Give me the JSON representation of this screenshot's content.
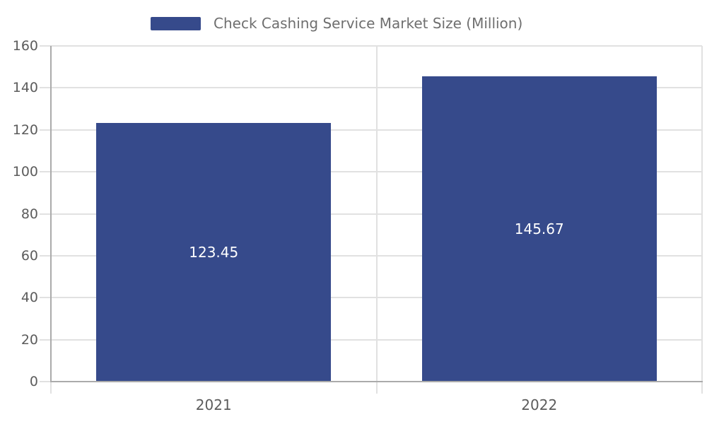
{
  "legend": {
    "label": "Check Cashing Service Market Size (Million)"
  },
  "chart_data": {
    "type": "bar",
    "title": "Check Cashing Service Market Size (Million)",
    "categories": [
      "2021",
      "2022"
    ],
    "values": [
      123.45,
      145.67
    ],
    "value_labels": [
      "123.45",
      "145.67"
    ],
    "series": [
      {
        "name": "Check Cashing Service Market Size (Million)",
        "values": [
          123.45,
          145.67
        ]
      }
    ],
    "xlabel": "",
    "ylabel": "",
    "ylim": [
      0,
      160
    ],
    "ytick_step": 20,
    "yticks": [
      0,
      20,
      40,
      60,
      80,
      100,
      120,
      140,
      160
    ],
    "grid": true,
    "legend_position": "top",
    "colors": {
      "bar": "#364A8B",
      "grid": "#e1e1e1",
      "axis": "#ababab",
      "axis_label": "#5c5c5c",
      "legend_text": "#6f6f6f",
      "value_label": "#ffffff",
      "background": "#ffffff"
    }
  }
}
